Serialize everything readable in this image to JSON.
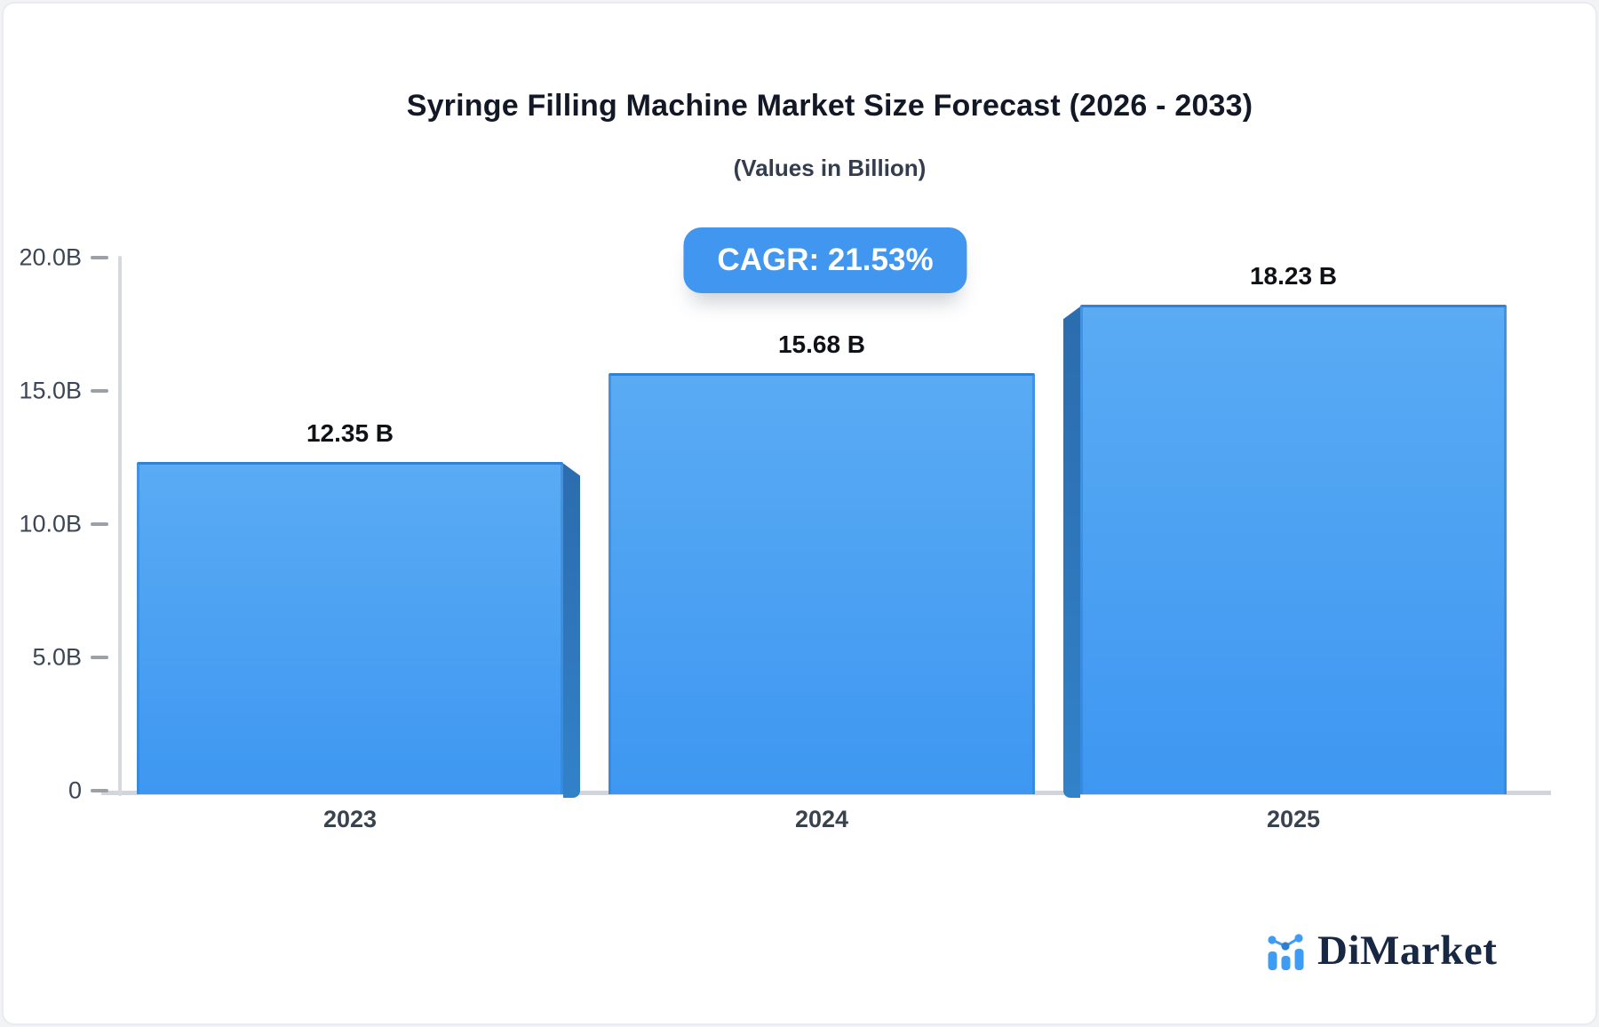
{
  "header": {
    "title": "Syringe Filling Machine Market Size Forecast (2026 - 2033)",
    "subtitle": "(Values in Billion)"
  },
  "cagr_badge": {
    "label": "CAGR: 21.53%",
    "background": "#4196f0",
    "text_color": "#ffffff"
  },
  "chart_data": {
    "type": "bar",
    "title": "Syringe Filling Machine Market Size Forecast (2026 - 2033)",
    "subtitle": "(Values in Billion)",
    "categories": [
      "2023",
      "2024",
      "2025"
    ],
    "values": [
      12.35,
      15.68,
      18.23
    ],
    "value_labels": [
      "12.35 B",
      "15.68 B",
      "18.23 B"
    ],
    "cagr_percent": 21.53,
    "ylim": [
      0,
      20
    ],
    "ytick_values": [
      20,
      15,
      10,
      5,
      0
    ],
    "ytick_labels": [
      "20.0B",
      "15.0B",
      "10.0B",
      "5.0B",
      "0"
    ],
    "xlabel": "",
    "ylabel": "",
    "grid": false,
    "legend": false,
    "bar_gradient_top": "#5aabf4",
    "bar_gradient_bottom": "#3e97f1",
    "bar_border_color": "#2f80d4",
    "bar_side_color": "#2e74b8",
    "axis_color": "#d5d8dc",
    "tick_color": "#9ca1a8",
    "tick_label_color": "#3c4654",
    "value_label_color": "#0e1116"
  },
  "logo": {
    "text": "DiMarket",
    "icon": "bar-chart-trend-icon",
    "icon_color": "#3f9cf3",
    "text_color": "#182742"
  }
}
